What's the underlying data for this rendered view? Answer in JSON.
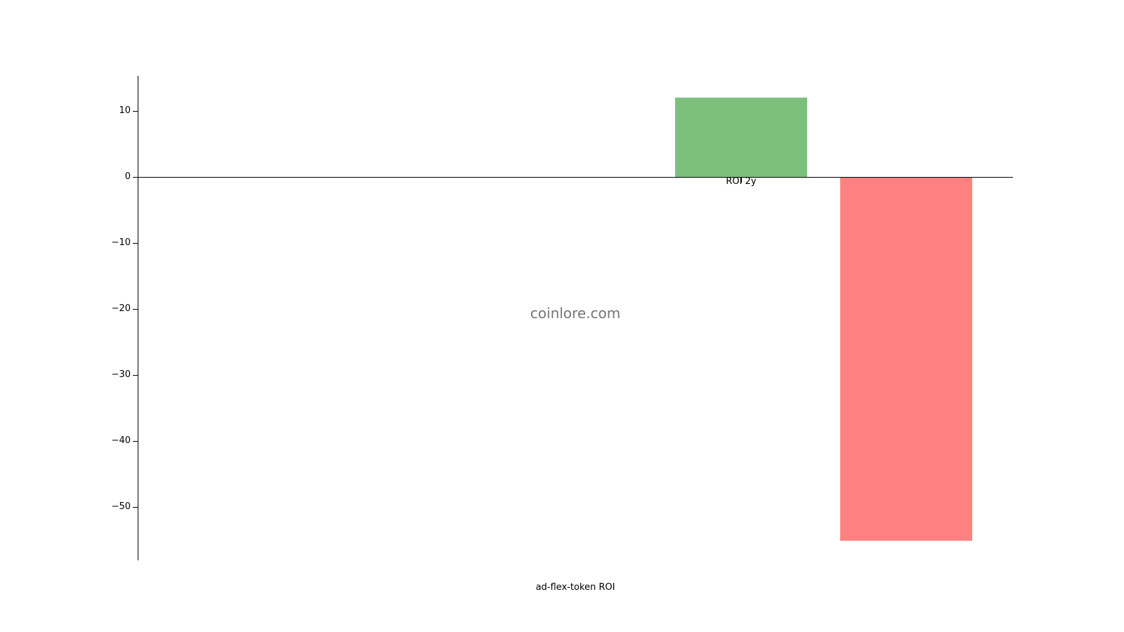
{
  "chart_data": {
    "type": "bar",
    "title": "ad-flex-token ROI",
    "watermark": "coinlore.com",
    "categories": [
      "ROI 2y",
      ""
    ],
    "series": [
      {
        "name": "ROI",
        "values": [
          12,
          -55
        ]
      }
    ],
    "bar_colors": [
      "#7dc07e",
      "#ff8181"
    ],
    "y_ticks": [
      10,
      0,
      -10,
      -20,
      -30,
      -40,
      -50
    ],
    "ylim": [
      -58,
      15.3
    ],
    "xlabel": "",
    "ylabel": "",
    "grid": false,
    "legend": "none",
    "colors": {
      "axis": "#000000",
      "tick_label": "#000000",
      "watermark": "#757575",
      "title": "#000000",
      "background": "#ffffff"
    }
  }
}
